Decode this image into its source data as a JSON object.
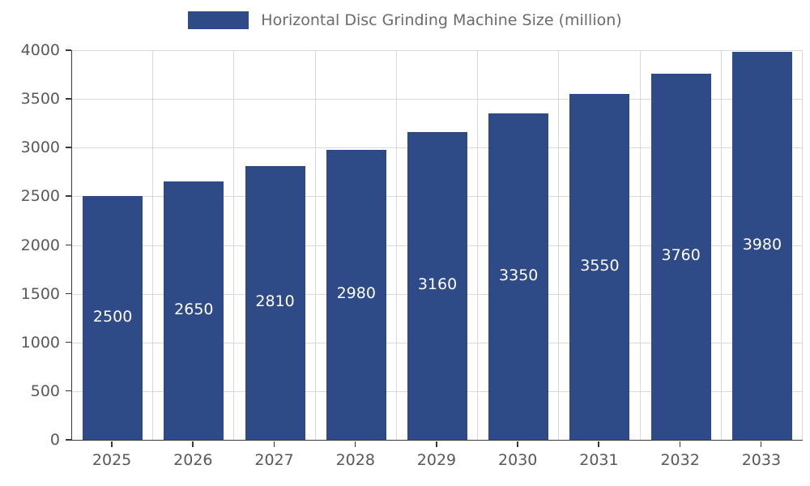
{
  "chart_data": {
    "type": "bar",
    "title": "Horizontal Disc Grinding Machine Size (million)",
    "legend_label": "Horizontal Disc Grinding Machine Size (million)",
    "categories": [
      "2025",
      "2026",
      "2027",
      "2028",
      "2029",
      "2030",
      "2031",
      "2032",
      "2033"
    ],
    "values": [
      2500,
      2650,
      2810,
      2980,
      3160,
      3350,
      3550,
      3760,
      3980
    ],
    "series": [
      {
        "name": "Horizontal Disc Grinding Machine Size (million)",
        "values": [
          2500,
          2650,
          2810,
          2980,
          3160,
          3350,
          3550,
          3760,
          3980
        ]
      }
    ],
    "xlabel": "",
    "ylabel": "",
    "ylim": [
      0,
      4000
    ],
    "yticks": [
      0,
      500,
      1000,
      1500,
      2000,
      2500,
      3000,
      3500,
      4000
    ],
    "grid": true,
    "legend_position": "top",
    "bar_labels_shown": true
  },
  "colors": {
    "bar": "#2e4a87",
    "bar_label_text": "#ffffff",
    "grid": "#d9d9d9",
    "axis": "#3a3a3a",
    "tick_text": "#595959",
    "legend_text": "#6b6b6b",
    "background": "#ffffff"
  }
}
